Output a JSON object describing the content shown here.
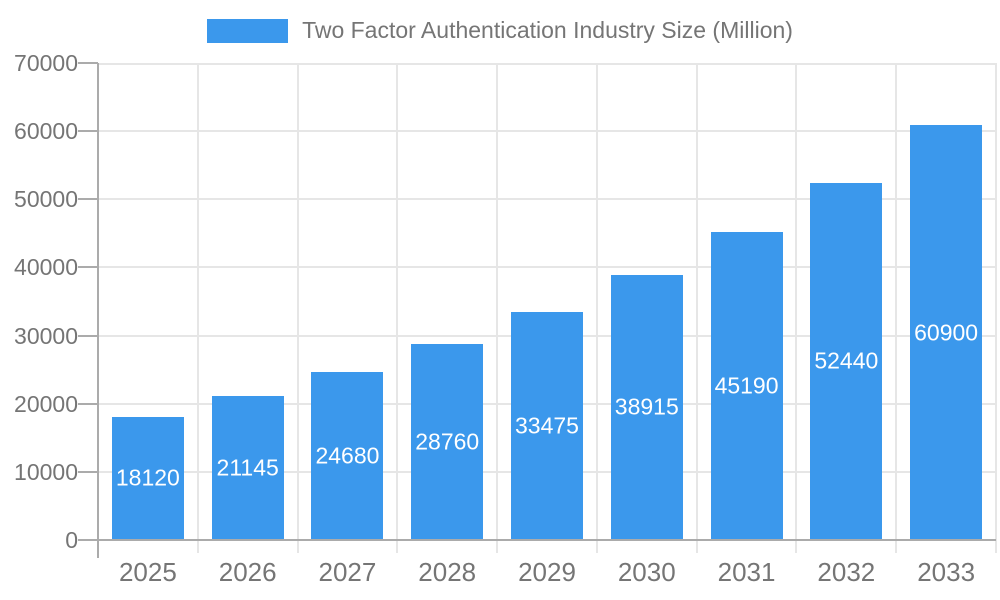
{
  "chart_data": {
    "type": "bar",
    "title": "Two Factor Authentication Industry Size (Million)",
    "legend": {
      "label": "Two Factor Authentication Industry Size (Million)",
      "position": "top-center"
    },
    "categories": [
      "2025",
      "2026",
      "2027",
      "2028",
      "2029",
      "2030",
      "2031",
      "2032",
      "2033"
    ],
    "values": [
      18120,
      21145,
      24680,
      28760,
      33475,
      38915,
      45190,
      52440,
      60900
    ],
    "xlabel": "",
    "ylabel": "",
    "ylim": [
      0,
      70000
    ],
    "yticks": [
      0,
      10000,
      20000,
      30000,
      40000,
      50000,
      60000,
      70000
    ],
    "grid": true,
    "colors": {
      "bar": "#3B98EC",
      "value_label": "#FFFFFF",
      "axis_text": "#757575",
      "gridline": "#E6E6E6",
      "axis_line": "#ABABAB",
      "background": "#FFFFFF"
    }
  }
}
